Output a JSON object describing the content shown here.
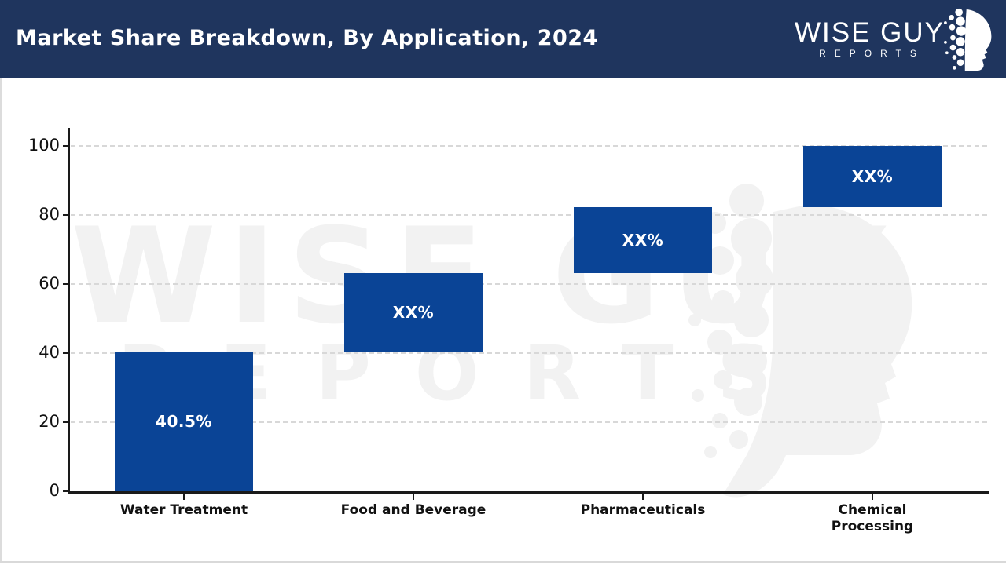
{
  "header": {
    "title": "Market Share Breakdown, By Application, 2024",
    "bg_color": "#1f355e",
    "logo": {
      "line1": "WISE GUY",
      "line2": "REPORTS"
    }
  },
  "watermark": {
    "line1": "WISE GUY",
    "line2": "REPORTS"
  },
  "footer": {
    "hairline_color": "#d9d9d9"
  },
  "chart_data": {
    "type": "bar",
    "subtype": "waterfall",
    "title": "Market Share Breakdown, By Application, 2024",
    "categories": [
      "Water Treatment",
      "Food and Beverage",
      "Pharmaceuticals",
      "Chemical\nProcessing"
    ],
    "segments": [
      {
        "category": "Water Treatment",
        "start": 0,
        "end": 40.5,
        "value": 40.5,
        "label": "40.5%"
      },
      {
        "category": "Food and Beverage",
        "start": 40.5,
        "end": 63.2,
        "value": 22.7,
        "label": "XX%"
      },
      {
        "category": "Pharmaceuticals",
        "start": 63.2,
        "end": 82.3,
        "value": 19.1,
        "label": "XX%"
      },
      {
        "category": "Chemical Processing",
        "start": 82.3,
        "end": 100,
        "value": 17.7,
        "label": "XX%"
      }
    ],
    "xlabel": "",
    "ylabel": "",
    "ylim": [
      0,
      105
    ],
    "yticks": [
      0,
      20,
      40,
      60,
      80,
      100
    ],
    "grid": "horizontal dashed",
    "legend": "none",
    "bar_color": "#0a4496",
    "bar_label_color": "#ffffff",
    "axis_color": "#1a1a1a",
    "gridline_color": "#d8d8d8"
  }
}
